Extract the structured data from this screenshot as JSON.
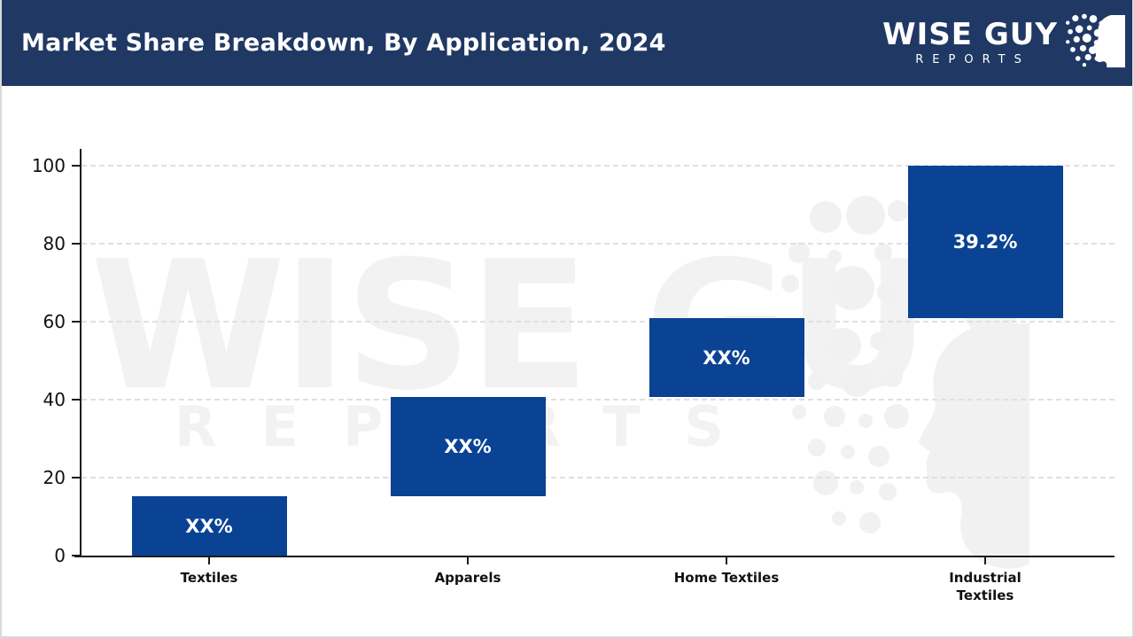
{
  "header": {
    "title": "Market Share Breakdown, By Application, 2024",
    "logo": {
      "line1": "WISE GUY",
      "line2": "REPORTS"
    }
  },
  "watermark": {
    "line1": "WISE GUY",
    "line2": "REPORTS"
  },
  "colors": {
    "header_bg": "#1f3864",
    "bar": "#0a4294",
    "axis": "#1c1c1c",
    "grid": "#e0e0e0",
    "watermark": "#f2f2f2",
    "title_text": "#ffffff",
    "bar_label_text": "#ffffff"
  },
  "chart_data": {
    "type": "bar",
    "subtype": "waterfall",
    "title": "Market Share Breakdown, By Application, 2024",
    "xlabel": "",
    "ylabel": "",
    "ylim": [
      0,
      100
    ],
    "y_ticks": [
      0,
      20,
      40,
      60,
      80,
      100
    ],
    "grid": "horizontal-dashed",
    "legend": "none",
    "categories": [
      "Textiles",
      "Apparels",
      "Home Textiles",
      "Industrial\nTextiles"
    ],
    "segments": [
      {
        "category": "Textiles",
        "start": 0,
        "end": 15.2,
        "value": 15.2,
        "label": "XX%"
      },
      {
        "category": "Apparels",
        "start": 15.2,
        "end": 40.7,
        "value": 25.5,
        "label": "XX%"
      },
      {
        "category": "Home Textiles",
        "start": 40.7,
        "end": 60.8,
        "value": 20.1,
        "label": "XX%"
      },
      {
        "category": "Industrial\nTextiles",
        "start": 60.8,
        "end": 100,
        "value": 39.2,
        "label": "39.2%"
      }
    ]
  }
}
